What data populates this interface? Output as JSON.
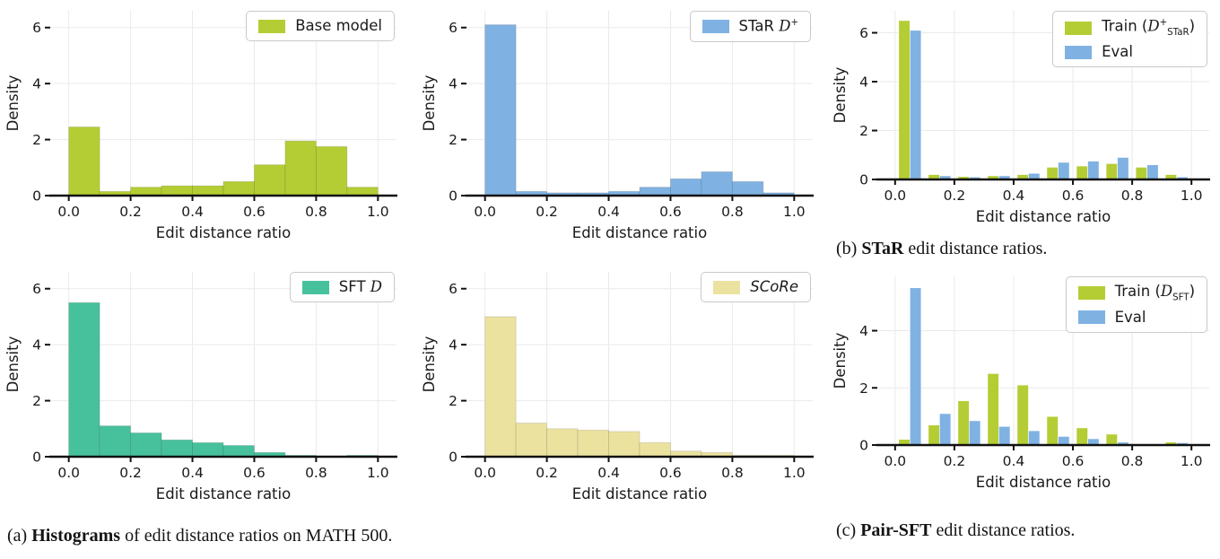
{
  "captions": {
    "a": {
      "prefix": "(a) ",
      "bold": "Histograms",
      "rest": " of edit distance ratios on MATH 500."
    },
    "b": {
      "prefix": "(b) ",
      "bold": "STaR",
      "rest": " edit distance ratios."
    },
    "c": {
      "prefix": "(c) ",
      "bold": "Pair-SFT",
      "rest": " edit distance ratios."
    }
  },
  "colors": {
    "olive": "#b5cd34",
    "blue": "#7fb2e2",
    "teal": "#47c19c",
    "khaki": "#ece2a0"
  },
  "chart_data": [
    {
      "id": "base-model",
      "type": "bar",
      "color": "#b5cd34",
      "legend": [
        {
          "color": "#b5cd34",
          "parts": [
            {
              "t": "Base model"
            }
          ]
        }
      ],
      "xlabel": "Edit distance ratio",
      "ylabel": "Density",
      "bin_edges": [
        0.0,
        0.1,
        0.2,
        0.3,
        0.4,
        0.5,
        0.6,
        0.7,
        0.8,
        0.9,
        1.0
      ],
      "values": [
        2.45,
        0.15,
        0.3,
        0.35,
        0.35,
        0.5,
        1.1,
        1.95,
        1.75,
        0.3
      ],
      "xticks": [
        0.0,
        0.2,
        0.4,
        0.6,
        0.8,
        1.0
      ],
      "yticks": [
        0,
        2,
        4,
        6
      ],
      "ylim": [
        0,
        6.6
      ]
    },
    {
      "id": "star-dplus",
      "type": "bar",
      "color": "#7fb2e2",
      "legend": [
        {
          "color": "#7fb2e2",
          "parts": [
            {
              "t": "STaR "
            },
            {
              "t": "D",
              "cls": "cal"
            },
            {
              "t": "+",
              "cls": "sup"
            }
          ]
        }
      ],
      "xlabel": "Edit distance ratio",
      "ylabel": "Density",
      "bin_edges": [
        0.0,
        0.1,
        0.2,
        0.3,
        0.4,
        0.5,
        0.6,
        0.7,
        0.8,
        0.9,
        1.0
      ],
      "values": [
        6.1,
        0.15,
        0.1,
        0.1,
        0.15,
        0.3,
        0.6,
        0.85,
        0.5,
        0.1
      ],
      "xticks": [
        0.0,
        0.2,
        0.4,
        0.6,
        0.8,
        1.0
      ],
      "yticks": [
        0,
        2,
        4,
        6
      ],
      "ylim": [
        0,
        6.6
      ]
    },
    {
      "id": "sft-d",
      "type": "bar",
      "color": "#47c19c",
      "legend": [
        {
          "color": "#47c19c",
          "parts": [
            {
              "t": "SFT "
            },
            {
              "t": "D",
              "cls": "cal"
            }
          ]
        }
      ],
      "xlabel": "Edit distance ratio",
      "ylabel": "Density",
      "bin_edges": [
        0.0,
        0.1,
        0.2,
        0.3,
        0.4,
        0.5,
        0.6,
        0.7,
        0.8,
        0.9,
        1.0
      ],
      "values": [
        5.5,
        1.1,
        0.85,
        0.6,
        0.5,
        0.4,
        0.15,
        0.05,
        0.0,
        0.05
      ],
      "xticks": [
        0.0,
        0.2,
        0.4,
        0.6,
        0.8,
        1.0
      ],
      "yticks": [
        0,
        2,
        4,
        6
      ],
      "ylim": [
        0,
        6.6
      ]
    },
    {
      "id": "score",
      "type": "bar",
      "color": "#ece2a0",
      "legend": [
        {
          "color": "#ece2a0",
          "parts": [
            {
              "t": "SCoRe",
              "cls": "it"
            }
          ]
        }
      ],
      "xlabel": "Edit distance ratio",
      "ylabel": "Density",
      "bin_edges": [
        0.0,
        0.1,
        0.2,
        0.3,
        0.4,
        0.5,
        0.6,
        0.7,
        0.8,
        0.9,
        1.0
      ],
      "values": [
        5.0,
        1.2,
        1.0,
        0.95,
        0.9,
        0.5,
        0.2,
        0.15,
        0.05,
        0.05
      ],
      "xticks": [
        0.0,
        0.2,
        0.4,
        0.6,
        0.8,
        1.0
      ],
      "yticks": [
        0,
        2,
        4,
        6
      ],
      "ylim": [
        0,
        6.6
      ]
    },
    {
      "id": "star-train-eval",
      "type": "bar",
      "grouped": true,
      "legend": [
        {
          "color": "#b5cd34",
          "parts": [
            {
              "t": "Train ("
            },
            {
              "t": "D",
              "cls": "cal"
            },
            {
              "t": "+",
              "cls": "sup"
            },
            {
              "t": "STaR",
              "cls": "sub"
            },
            {
              "t": ")"
            }
          ]
        },
        {
          "color": "#7fb2e2",
          "parts": [
            {
              "t": "Eval"
            }
          ]
        }
      ],
      "xlabel": "Edit distance ratio",
      "ylabel": "Density",
      "bin_edges": [
        0.0,
        0.1,
        0.2,
        0.3,
        0.4,
        0.5,
        0.6,
        0.7,
        0.8,
        0.9,
        1.0
      ],
      "series": [
        {
          "name": "Train (D+_STaR)",
          "color": "#b5cd34",
          "values": [
            6.5,
            0.2,
            0.12,
            0.15,
            0.2,
            0.5,
            0.55,
            0.65,
            0.5,
            0.2
          ]
        },
        {
          "name": "Eval",
          "color": "#7fb2e2",
          "values": [
            6.1,
            0.15,
            0.1,
            0.15,
            0.25,
            0.7,
            0.75,
            0.9,
            0.6,
            0.1
          ]
        }
      ],
      "xticks": [
        0.0,
        0.2,
        0.4,
        0.6,
        0.8,
        1.0
      ],
      "yticks": [
        0,
        2,
        4,
        6
      ],
      "ylim": [
        0,
        6.9
      ]
    },
    {
      "id": "pairsft-train-eval",
      "type": "bar",
      "grouped": true,
      "legend": [
        {
          "color": "#b5cd34",
          "parts": [
            {
              "t": "Train ("
            },
            {
              "t": "D",
              "cls": "cal"
            },
            {
              "t": "SFT",
              "cls": "sub"
            },
            {
              "t": ")"
            }
          ]
        },
        {
          "color": "#7fb2e2",
          "parts": [
            {
              "t": "Eval"
            }
          ]
        }
      ],
      "xlabel": "Edit distance ratio",
      "ylabel": "Density",
      "bin_edges": [
        0.0,
        0.1,
        0.2,
        0.3,
        0.4,
        0.5,
        0.6,
        0.7,
        0.8,
        0.9,
        1.0
      ],
      "series": [
        {
          "name": "Train (D_SFT)",
          "color": "#b5cd34",
          "values": [
            0.2,
            0.7,
            1.55,
            2.5,
            2.1,
            1.0,
            0.6,
            0.38,
            0.0,
            0.1
          ]
        },
        {
          "name": "Eval",
          "color": "#7fb2e2",
          "values": [
            5.5,
            1.1,
            0.85,
            0.65,
            0.5,
            0.3,
            0.22,
            0.1,
            0.0,
            0.08
          ]
        }
      ],
      "xticks": [
        0.0,
        0.2,
        0.4,
        0.6,
        0.8,
        1.0
      ],
      "yticks": [
        0,
        2,
        4
      ],
      "ylim": [
        0,
        5.9
      ]
    }
  ]
}
